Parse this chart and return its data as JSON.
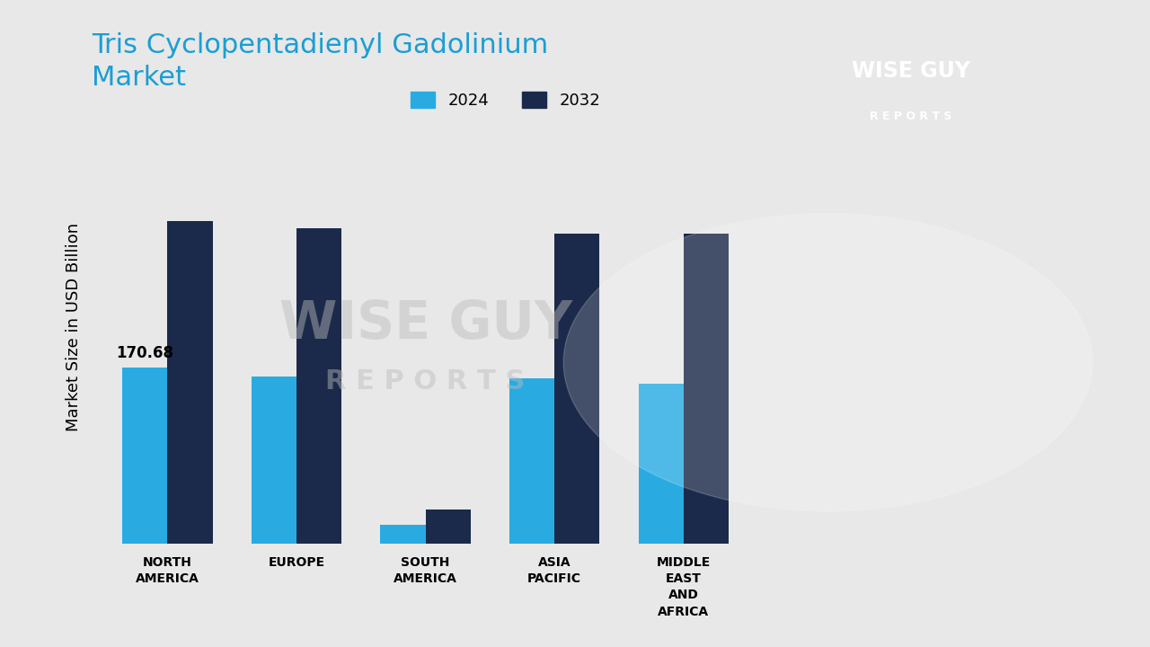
{
  "title_line1": "Tris Cyclopentadienyl Gadolinium",
  "title_line2": "Market",
  "title_color": "#1B9ED4",
  "ylabel": "Market Size in USD Billion",
  "categories": [
    "NORTH\nAMERICA",
    "EUROPE",
    "SOUTH\nAMERICA",
    "ASIA\nPACIFIC",
    "MIDDLE\nEAST\nAND\nAFRICA"
  ],
  "values_2024": [
    170.68,
    162.0,
    18.5,
    160.0,
    155.0
  ],
  "values_2032": [
    312.0,
    305.0,
    33.0,
    300.0,
    300.0
  ],
  "color_2024": "#29ABE2",
  "color_2032": "#1B2A4A",
  "annotation_text": "170.68",
  "bg_color": "#E8E8E8",
  "right_panel_color": "#152238",
  "legend_label_2024": "2024",
  "legend_label_2032": "2032",
  "bar_width": 0.35,
  "title_fontsize": 22,
  "ylabel_fontsize": 13,
  "tick_fontsize": 10,
  "legend_fontsize": 13,
  "ylim_max": 420,
  "wiseguy_line1": "WISE GUY",
  "wiseguy_line2": "R E P O R T S"
}
